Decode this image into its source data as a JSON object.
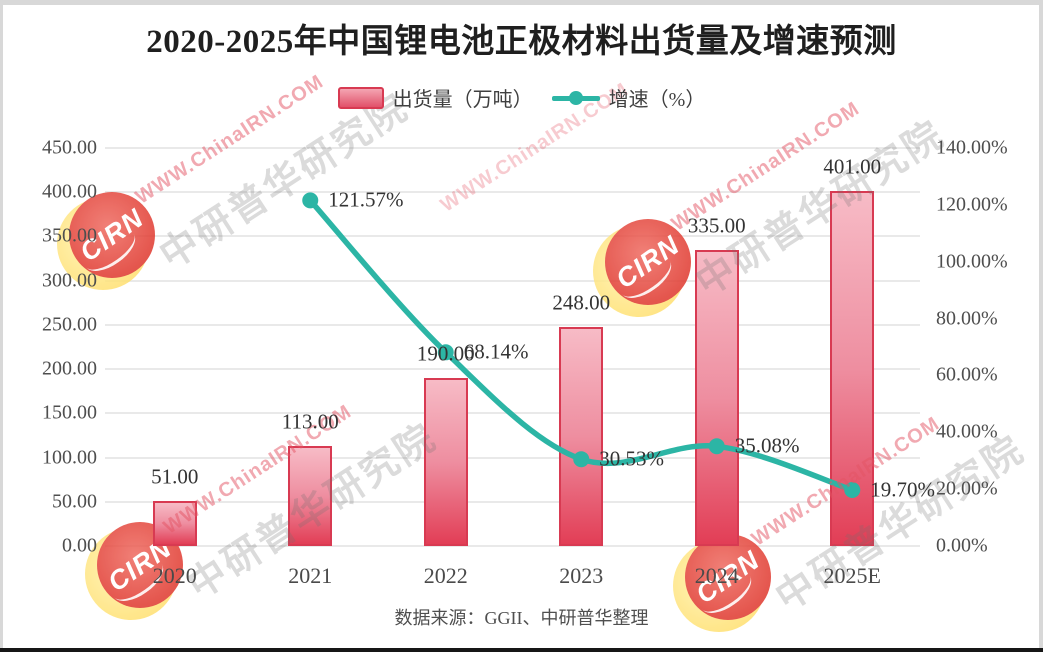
{
  "page": {
    "title": "2020-2025年中国锂电池正极材料出货量及增速预测",
    "source": "数据来源：GGII、中研普华整理"
  },
  "legend": {
    "bars_label": "出货量（万吨）",
    "line_label": "增速（%）"
  },
  "watermark": {
    "url_text": "WWW.ChinaIRN.COM",
    "org_text": "中研普华研究院",
    "logo_text": "CIRN"
  },
  "colors": {
    "bar_fill_top": "#f7bbc6",
    "bar_fill_bottom": "#e23e56",
    "bar_border": "#d83a52",
    "line": "#2cb5a5",
    "gridline": "#e9e9e9",
    "axis_text": "#4e4e4e",
    "label_text": "#333333",
    "title_text": "#1f1f1f"
  },
  "chart_data": {
    "type": "bar",
    "subtype": "bar+line combo, dual axis",
    "title": "2020-2025年中国锂电池正极材料出货量及增速预测",
    "categories": [
      "2020",
      "2021",
      "2022",
      "2023",
      "2024",
      "2025E"
    ],
    "series": [
      {
        "name": "出货量（万吨）",
        "type": "bar",
        "axis": "left",
        "values": [
          51,
          113,
          190,
          248,
          335,
          401
        ],
        "labels": [
          "51.00",
          "113.00",
          "190.00",
          "248.00",
          "335.00",
          "401.00"
        ]
      },
      {
        "name": "增速（%）",
        "type": "line",
        "axis": "right",
        "values": [
          null,
          121.57,
          68.14,
          30.53,
          35.08,
          19.7
        ],
        "labels": [
          null,
          "121.57%",
          "68.14%",
          "30.53%",
          "35.08%",
          "19.70%"
        ]
      }
    ],
    "left_axis": {
      "min": 0,
      "max": 450,
      "step": 50,
      "tick_labels": [
        "450.00",
        "400.00",
        "350.00",
        "300.00",
        "250.00",
        "200.00",
        "150.00",
        "100.00",
        "50.00",
        "0.00"
      ]
    },
    "right_axis": {
      "min": 0,
      "max": 140,
      "step": 20,
      "tick_labels": [
        "140.00%",
        "120.00%",
        "100.00%",
        "80.00%",
        "60.00%",
        "40.00%",
        "20.00%",
        "0.00%"
      ]
    },
    "grid": true,
    "legend_position": "top",
    "xlabel": "",
    "ylabel": ""
  }
}
